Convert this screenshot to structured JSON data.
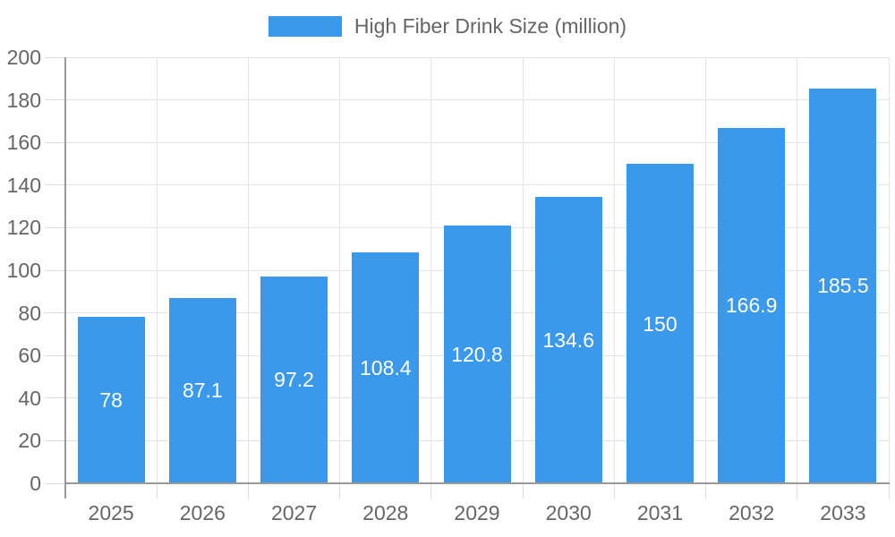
{
  "legend": {
    "label": "High Fiber Drink Size (million)"
  },
  "chart_data": {
    "type": "bar",
    "title": "High Fiber Drink Size (million)",
    "categories": [
      "2025",
      "2026",
      "2027",
      "2028",
      "2029",
      "2030",
      "2031",
      "2032",
      "2033"
    ],
    "values": [
      78,
      87.1,
      97.2,
      108.4,
      120.8,
      134.6,
      150,
      166.9,
      185.5
    ],
    "value_labels": [
      "78",
      "87.1",
      "97.2",
      "108.4",
      "120.8",
      "134.6",
      "150",
      "166.9",
      "185.5"
    ],
    "series_name": "High Fiber Drink Size (million)",
    "xlabel": "",
    "ylabel": "",
    "ylim": [
      0,
      200
    ],
    "yticks": [
      0,
      20,
      40,
      60,
      80,
      100,
      120,
      140,
      160,
      180,
      200
    ],
    "ytick_labels": [
      "0",
      "20",
      "40",
      "60",
      "80",
      "100",
      "120",
      "140",
      "160",
      "180",
      "200"
    ],
    "grid": true,
    "legend_position": "top-center",
    "colors": {
      "bar": "#3b99ec",
      "axis_line": "#999999",
      "grid_line": "#e4e4e4",
      "tick_line": "#dcdcdc",
      "axis_text": "#666666",
      "value_label_text": "#ffffff",
      "background": "#ffffff"
    }
  }
}
